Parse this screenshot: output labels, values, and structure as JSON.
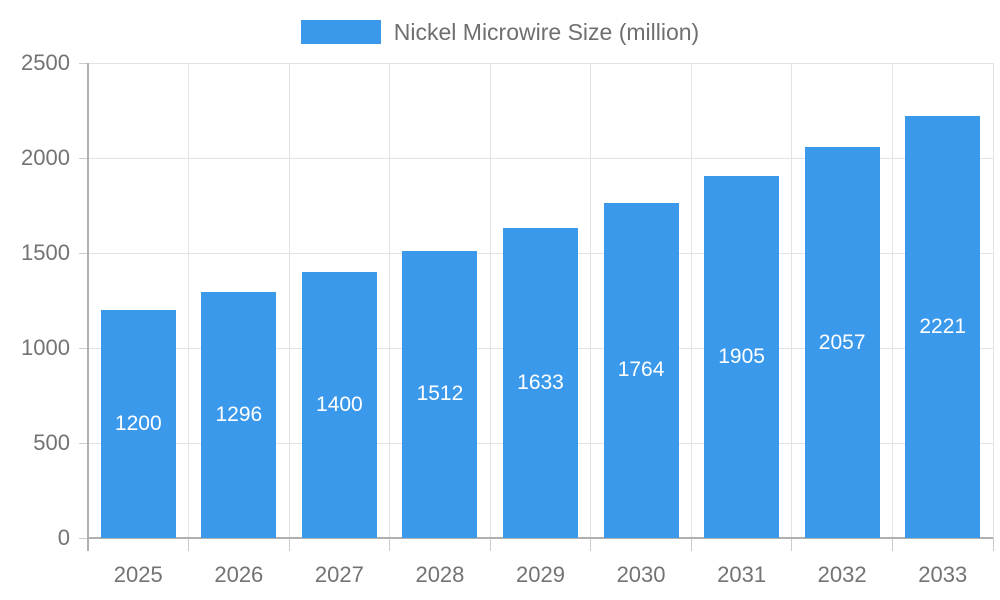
{
  "legend": {
    "label": "Nickel Microwire Size (million)"
  },
  "colors": {
    "bar": "#3B99EC",
    "grid": "#e3e3e3",
    "axis": "#b0b0b0",
    "tick": "#cccccc",
    "axis_label_text": "#737373",
    "legend_text": "#6f6f6f",
    "bar_label_text": "#ffffff",
    "background": "#ffffff"
  },
  "chart_data": {
    "type": "bar",
    "title": "Nickel Microwire Size (million)",
    "categories": [
      "2025",
      "2026",
      "2027",
      "2028",
      "2029",
      "2030",
      "2031",
      "2032",
      "2033"
    ],
    "values": [
      1200,
      1296,
      1400,
      1512,
      1633,
      1764,
      1905,
      2057,
      2221
    ],
    "xlabel": "",
    "ylabel": "",
    "ylim": [
      0,
      2500
    ],
    "yticks": [
      0,
      500,
      1000,
      1500,
      2000,
      2500
    ],
    "grid": true,
    "legend_position": "top",
    "value_label_position": "inside-center"
  }
}
